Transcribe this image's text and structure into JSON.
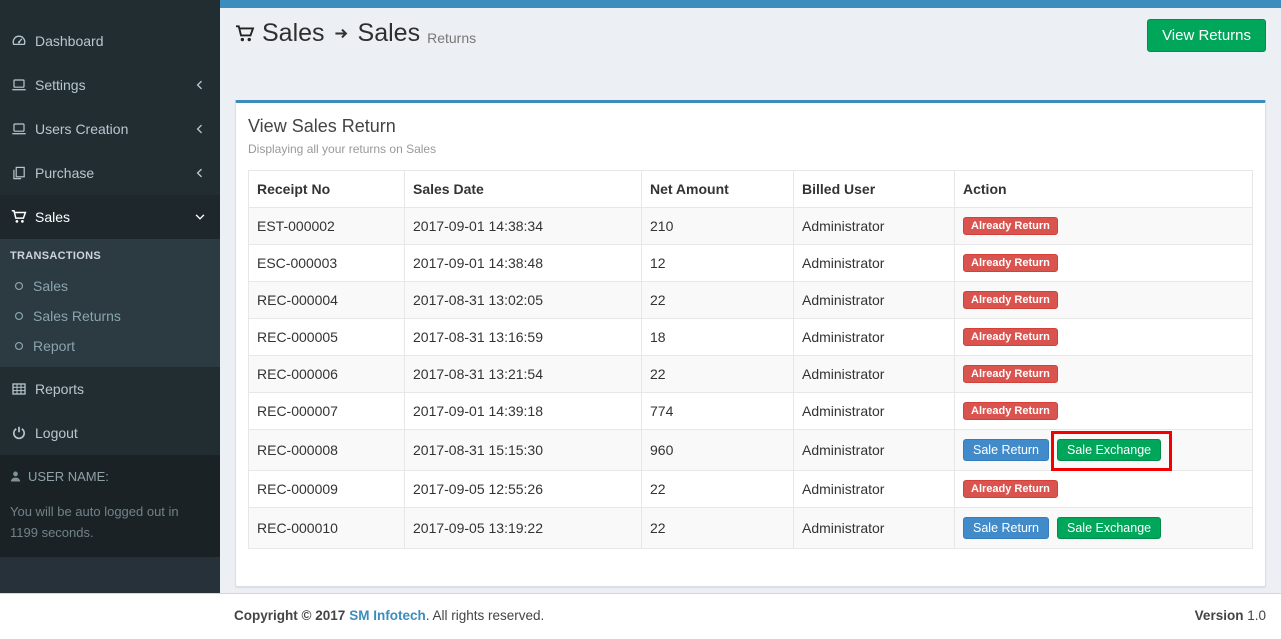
{
  "colors": {
    "topbar_blue": "#3c8dbc",
    "sidebar_bg": "#222d32",
    "sidebar_active_bg": "#1e282c",
    "submenu_bg": "#2c3b41",
    "content_bg": "#ecf0f5",
    "success_green": "#00a65a",
    "primary_blue": "#428bca",
    "danger_red": "#d9534f",
    "highlight_red": "#f50000",
    "link_blue": "#3c8dbc"
  },
  "sidebar": {
    "menu": [
      {
        "label": "Dashboard",
        "icon": "tachometer",
        "chevron": null,
        "active": false
      },
      {
        "label": "Settings",
        "icon": "laptop",
        "chevron": "left",
        "active": false
      },
      {
        "label": "Users Creation",
        "icon": "laptop",
        "chevron": "left",
        "active": false
      },
      {
        "label": "Purchase",
        "icon": "copy",
        "chevron": "left",
        "active": false
      },
      {
        "label": "Sales",
        "icon": "cart",
        "chevron": "down",
        "active": true
      }
    ],
    "submenu_header": "TRANSACTIONS",
    "submenu": [
      {
        "label": "Sales",
        "icon": "circle"
      },
      {
        "label": "Sales Returns",
        "icon": "circle"
      },
      {
        "label": "Report",
        "icon": "circle"
      }
    ],
    "menu_lower": [
      {
        "label": "Reports",
        "icon": "table",
        "chevron": null,
        "active": false
      },
      {
        "label": "Logout",
        "icon": "power",
        "chevron": null,
        "active": false
      }
    ],
    "user_panel": {
      "label": "USER NAME:",
      "auto_logout_text": "You will be auto logged out in 1199 seconds."
    }
  },
  "header": {
    "title": "Sales",
    "section": "Sales",
    "subsection": "Returns",
    "action_button": "View Returns"
  },
  "panel": {
    "title": "View Sales Return",
    "subtitle": "Displaying all your returns on Sales"
  },
  "table": {
    "columns": [
      "Receipt No",
      "Sales Date",
      "Net Amount",
      "Billed User",
      "Action"
    ],
    "rows": [
      {
        "receipt_no": "EST-000002",
        "sales_date": "2017-09-01 14:38:34",
        "net_amount": "210",
        "billed_user": "Administrator",
        "actions": [
          {
            "label": "Already Return",
            "style": "danger",
            "highlighted": false
          }
        ]
      },
      {
        "receipt_no": "ESC-000003",
        "sales_date": "2017-09-01 14:38:48",
        "net_amount": "12",
        "billed_user": "Administrator",
        "actions": [
          {
            "label": "Already Return",
            "style": "danger",
            "highlighted": false
          }
        ]
      },
      {
        "receipt_no": "REC-000004",
        "sales_date": "2017-08-31 13:02:05",
        "net_amount": "22",
        "billed_user": "Administrator",
        "actions": [
          {
            "label": "Already Return",
            "style": "danger",
            "highlighted": false
          }
        ]
      },
      {
        "receipt_no": "REC-000005",
        "sales_date": "2017-08-31 13:16:59",
        "net_amount": "18",
        "billed_user": "Administrator",
        "actions": [
          {
            "label": "Already Return",
            "style": "danger",
            "highlighted": false
          }
        ]
      },
      {
        "receipt_no": "REC-000006",
        "sales_date": "2017-08-31 13:21:54",
        "net_amount": "22",
        "billed_user": "Administrator",
        "actions": [
          {
            "label": "Already Return",
            "style": "danger",
            "highlighted": false
          }
        ]
      },
      {
        "receipt_no": "REC-000007",
        "sales_date": "2017-09-01 14:39:18",
        "net_amount": "774",
        "billed_user": "Administrator",
        "actions": [
          {
            "label": "Already Return",
            "style": "danger",
            "highlighted": false
          }
        ]
      },
      {
        "receipt_no": "REC-000008",
        "sales_date": "2017-08-31 15:15:30",
        "net_amount": "960",
        "billed_user": "Administrator",
        "actions": [
          {
            "label": "Sale Return",
            "style": "primary",
            "highlighted": false
          },
          {
            "label": "Sale Exchange",
            "style": "success",
            "highlighted": true
          }
        ]
      },
      {
        "receipt_no": "REC-000009",
        "sales_date": "2017-09-05 12:55:26",
        "net_amount": "22",
        "billed_user": "Administrator",
        "actions": [
          {
            "label": "Already Return",
            "style": "danger",
            "highlighted": false
          }
        ]
      },
      {
        "receipt_no": "REC-000010",
        "sales_date": "2017-09-05 13:19:22",
        "net_amount": "22",
        "billed_user": "Administrator",
        "actions": [
          {
            "label": "Sale Return",
            "style": "primary",
            "highlighted": false
          },
          {
            "label": "Sale Exchange",
            "style": "success",
            "highlighted": false
          }
        ]
      }
    ]
  },
  "footer": {
    "copyright_bold": "Copyright © 2017",
    "brand_link": "SM Infotech",
    "copyright_rest": ". All rights reserved.",
    "version_label": "Version",
    "version_value": "1.0"
  }
}
